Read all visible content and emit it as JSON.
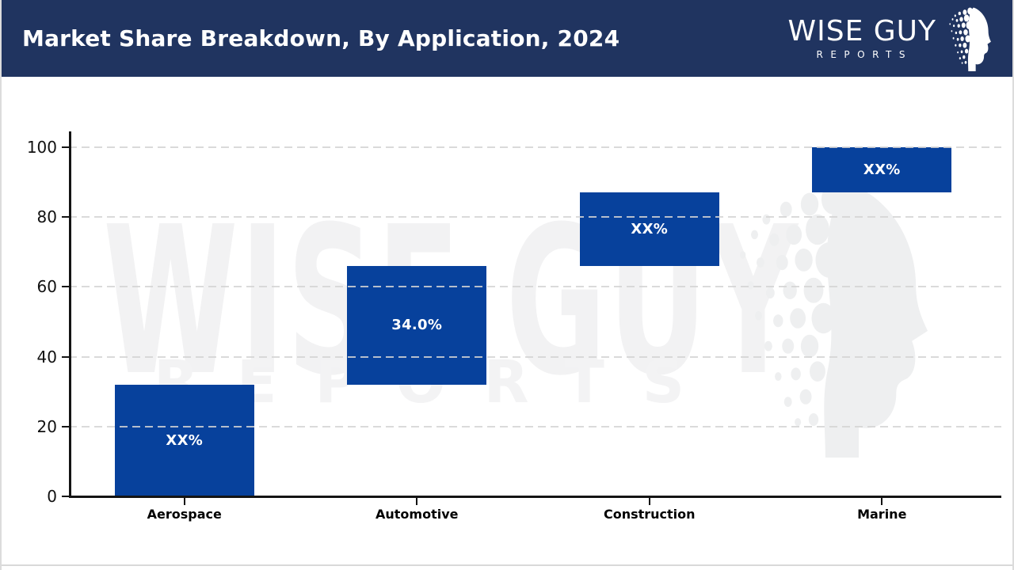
{
  "header": {
    "title": "Market Share Breakdown, By Application, 2024",
    "bg_color": "#203460",
    "logo": {
      "line1": "WISE GUY",
      "line2": "REPORTS"
    }
  },
  "watermark": {
    "line1": "WISE GUY",
    "line2": "REPORTS"
  },
  "chart_data": {
    "type": "bar",
    "subtype": "waterfall",
    "title": "Market Share Breakdown, By Application, 2024",
    "categories": [
      "Aerospace",
      "Automotive",
      "Construction",
      "Marine"
    ],
    "segments": [
      {
        "category": "Aerospace",
        "start": 0,
        "end": 32,
        "value": 32,
        "label": "XX%"
      },
      {
        "category": "Automotive",
        "start": 32,
        "end": 66,
        "value": 34,
        "label": "34.0%"
      },
      {
        "category": "Construction",
        "start": 66,
        "end": 87,
        "value": 21,
        "label": "XX%"
      },
      {
        "category": "Marine",
        "start": 87,
        "end": 100,
        "value": 13,
        "label": "XX%"
      }
    ],
    "xlabel": "",
    "ylabel": "",
    "ylim": [
      0,
      100
    ],
    "yticks": [
      0,
      20,
      40,
      60,
      80,
      100
    ],
    "grid": true,
    "grid_style": "dashed",
    "grid_over_bars": true,
    "legend": false,
    "bar_color": "#07419c",
    "bar_label_color": "#ffffff"
  }
}
